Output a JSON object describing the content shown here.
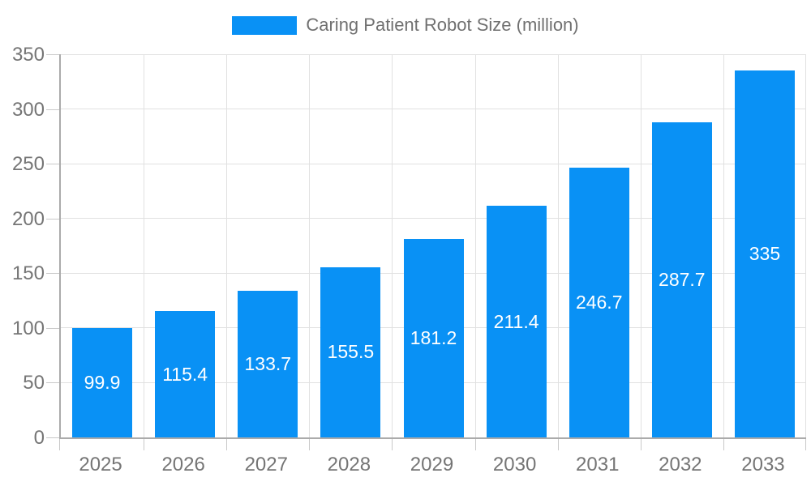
{
  "legend": {
    "label": "Caring Patient Robot Size (million)",
    "swatch_color": "#0991f5"
  },
  "chart_data": {
    "type": "bar",
    "title": "Caring Patient Robot Size (million)",
    "categories": [
      "2025",
      "2026",
      "2027",
      "2028",
      "2029",
      "2030",
      "2031",
      "2032",
      "2033"
    ],
    "values": [
      99.9,
      115.4,
      133.7,
      155.5,
      181.2,
      211.4,
      246.7,
      287.7,
      335
    ],
    "value_labels": [
      "99.9",
      "115.4",
      "133.7",
      "155.5",
      "181.2",
      "211.4",
      "246.7",
      "287.7",
      "335"
    ],
    "xlabel": "",
    "ylabel": "",
    "ylim": [
      0,
      350
    ],
    "yticks": [
      0,
      50,
      100,
      150,
      200,
      250,
      300,
      350
    ],
    "grid": true,
    "legend_position": "top",
    "colors": {
      "bar": "#0991f5",
      "value_label": "#ffffff",
      "axis_text": "#757575",
      "grid_line": "#e1e1e1",
      "axis_line": "#ababab",
      "tick_line": "#c9c9c9",
      "background": "#ffffff"
    }
  }
}
